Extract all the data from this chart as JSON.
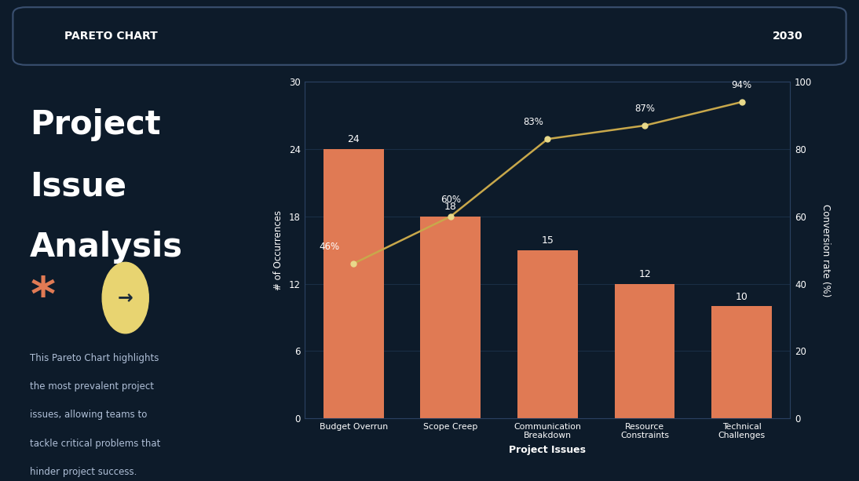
{
  "bg_color": "#0d1b2a",
  "header_text": "PARETO CHART",
  "year_text": "2030",
  "title_lines": [
    "Project",
    "Issue",
    "Analysis"
  ],
  "description": [
    "This Pareto Chart highlights",
    "the most prevalent project",
    "issues, allowing teams to",
    "tackle critical problems that",
    "hinder project success."
  ],
  "categories": [
    "Budget Overrun",
    "Scope Creep",
    "Communication\nBreakdown",
    "Resource\nConstraints",
    "Technical\nChallenges"
  ],
  "values": [
    24,
    18,
    15,
    12,
    10
  ],
  "cumulative_pct": [
    46,
    60,
    83,
    87,
    94
  ],
  "bar_color": "#e07a54",
  "line_color": "#c8a84b",
  "dot_color": "#e8d98a",
  "text_color": "#ffffff",
  "grid_color": "#1a2e45",
  "xlabel": "Project Issues",
  "ylabel_left": "# of Occurrences",
  "ylabel_right": "Conversion rate (%)",
  "ylim_left": [
    0,
    30
  ],
  "ylim_right": [
    0,
    100
  ],
  "yticks_left": [
    0,
    6,
    12,
    18,
    24,
    30
  ],
  "yticks_right": [
    0,
    20,
    40,
    60,
    80,
    100
  ],
  "asterisk_color": "#e07a54",
  "arrow_circle_color": "#e8d471",
  "arrow_color": "#1a2a3a",
  "header_border_color": "#3a5070",
  "spine_color": "#2a4060",
  "desc_color": "#b0c0d8",
  "pct_label_offsets_x": [
    -0.25,
    0.0,
    -0.15,
    0.0,
    0.0
  ],
  "pct_label_offsets_y": [
    3.5,
    3.5,
    3.5,
    3.5,
    3.5
  ]
}
